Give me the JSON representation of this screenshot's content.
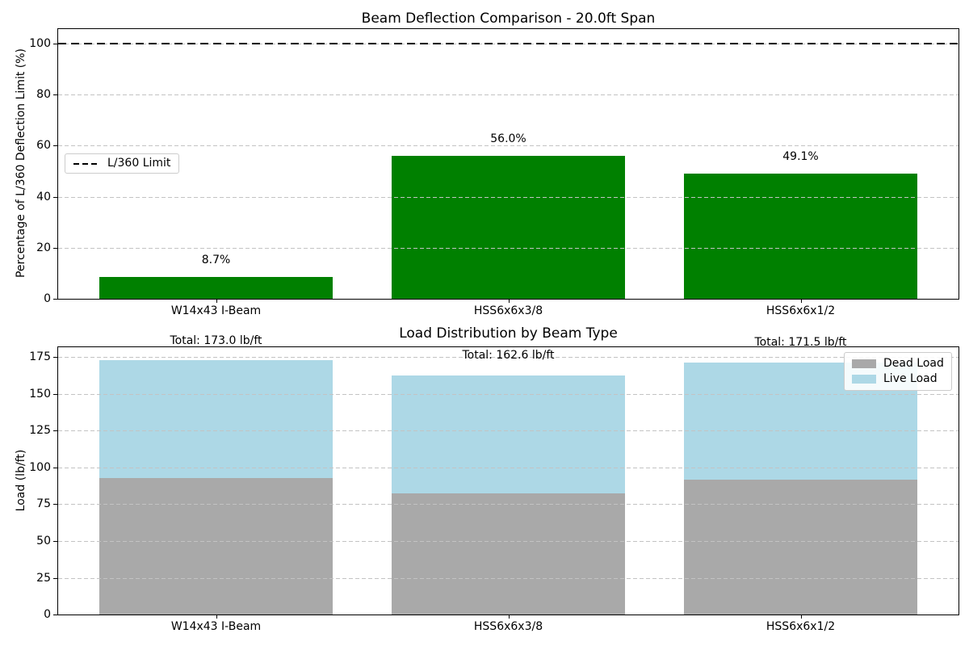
{
  "chart_data": [
    {
      "type": "bar",
      "title": "Beam Deflection Comparison - 20.0ft Span",
      "ylabel": "Percentage of L/360 Deflection Limit (%)",
      "xlabel": "",
      "categories": [
        "W14x43 I-Beam",
        "HSS6x6x3/8",
        "HSS6x6x1/2"
      ],
      "values": [
        8.7,
        56.0,
        49.1
      ],
      "value_labels": [
        "8.7%",
        "56.0%",
        "49.1%"
      ],
      "bar_color": "#008000",
      "ylim": [
        0,
        105.6
      ],
      "yticks": [
        0,
        20,
        40,
        60,
        80,
        100
      ],
      "grid": true,
      "grid_style": "dashed",
      "reference_line": {
        "value": 100,
        "color": "#000000",
        "style": "dashed",
        "label": "L/360 Limit"
      },
      "legend": {
        "position": "center-left",
        "entries": [
          {
            "label": "L/360 Limit",
            "swatch": "dashed-line",
            "color": "#000000"
          }
        ]
      },
      "value_label_offset": 4
    },
    {
      "type": "bar-stacked",
      "title": "Load Distribution by Beam Type",
      "ylabel": "Load (lb/ft)",
      "xlabel": "",
      "categories": [
        "W14x43 I-Beam",
        "HSS6x6x3/8",
        "HSS6x6x1/2"
      ],
      "series": [
        {
          "name": "Dead Load",
          "color": "#a9a9a9",
          "values": [
            93.0,
            82.6,
            91.5
          ]
        },
        {
          "name": "Live Load",
          "color": "#add8e6",
          "values": [
            80.0,
            80.0,
            80.0
          ]
        }
      ],
      "totals": [
        173.0,
        162.6,
        171.5
      ],
      "total_labels": [
        "Total: 173.0 lb/ft",
        "Total: 162.6 lb/ft",
        "Total: 171.5 lb/ft"
      ],
      "ylim": [
        0,
        181.7
      ],
      "yticks": [
        0,
        25,
        50,
        75,
        100,
        125,
        150,
        175
      ],
      "grid": true,
      "grid_style": "dashed",
      "legend": {
        "position": "upper-right",
        "entries": [
          {
            "label": "Dead Load",
            "swatch": "patch",
            "color": "#a9a9a9"
          },
          {
            "label": "Live Load",
            "swatch": "patch",
            "color": "#add8e6"
          }
        ]
      },
      "total_label_offset": 9
    }
  ]
}
